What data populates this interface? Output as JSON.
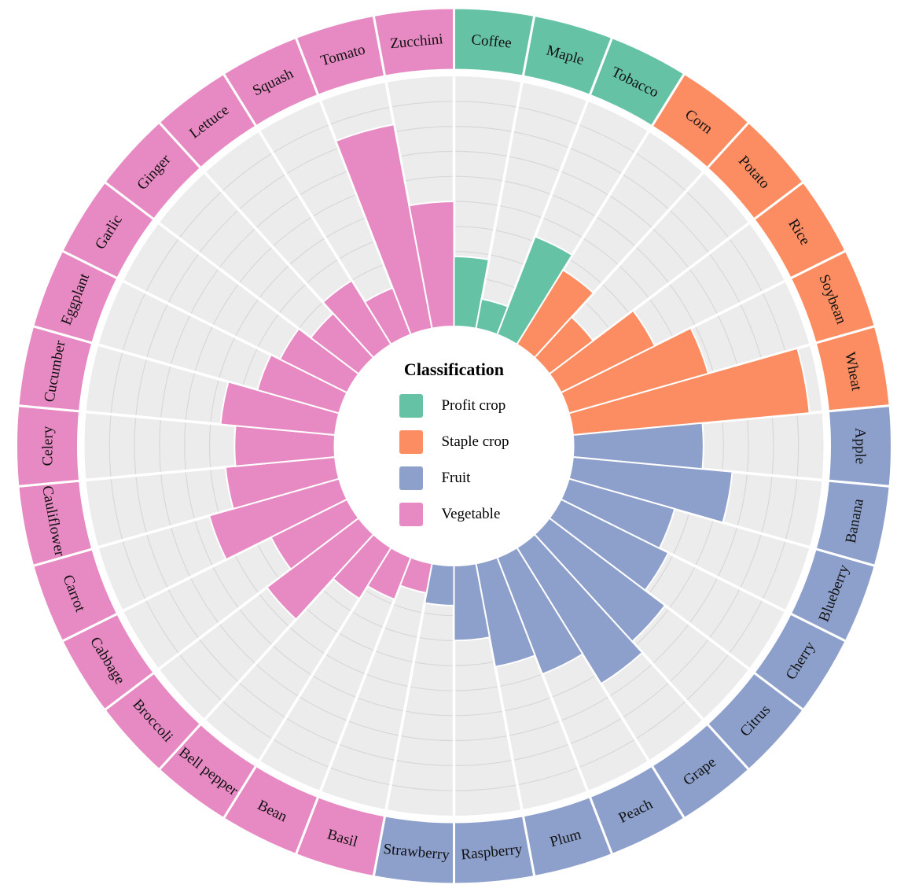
{
  "legend": {
    "title": "Classification",
    "items": [
      {
        "label": "Profit crop",
        "color": "#66c2a5"
      },
      {
        "label": "Staple crop",
        "color": "#fc8d62"
      },
      {
        "label": "Fruit",
        "color": "#8da0cb"
      },
      {
        "label": "Vegetable",
        "color": "#e78ac3"
      }
    ]
  },
  "chart_data": {
    "type": "bar",
    "subtype": "circular-polar",
    "title": "",
    "legend_title": "Classification",
    "legend_position": "center",
    "start_angle_deg": 0,
    "direction": "clockwise",
    "rings": 10,
    "value_max": 10,
    "value_tick_labels_shown": false,
    "grid": true,
    "background_color": "#ececec",
    "gridline_color": "#d8d8d8",
    "separator_color": "#ffffff",
    "series": [
      {
        "name": "Profit crop",
        "color": "#66c2a5",
        "categories": [
          "Coffee",
          "Maple",
          "Tobacco"
        ],
        "values": [
          2.8,
          1.2,
          4.2
        ]
      },
      {
        "name": "Staple crop",
        "color": "#fc8d62",
        "categories": [
          "Corn",
          "Potato",
          "Rice",
          "Soybean",
          "Wheat"
        ],
        "values": [
          3.5,
          2.2,
          4.2,
          5.8,
          9.5
        ]
      },
      {
        "name": "Fruit",
        "color": "#8da0cb",
        "categories": [
          "Apple",
          "Banana",
          "Blueberry",
          "Cherry",
          "Citrus",
          "Grape",
          "Peach",
          "Plum",
          "Raspberry",
          "Strawberry"
        ],
        "values": [
          5.2,
          6.4,
          4.4,
          4.8,
          5.8,
          6.4,
          5.0,
          4.2,
          3.0,
          1.6
        ]
      },
      {
        "name": "Vegetable",
        "color": "#e78ac3",
        "categories": [
          "Basil",
          "Bean",
          "Bell pepper",
          "Broccoli",
          "Cabbage",
          "Carrot",
          "Cauliflower",
          "Celery",
          "Cucumber",
          "Eggplant",
          "Garlic",
          "Ginger",
          "Lettuce",
          "Squash",
          "Tomato",
          "Zucchini"
        ],
        "values": [
          1.2,
          1.8,
          2.4,
          4.6,
          3.4,
          5.4,
          4.4,
          4.0,
          4.6,
          3.4,
          3.0,
          2.4,
          3.0,
          2.0,
          8.3,
          5.0
        ]
      }
    ]
  }
}
